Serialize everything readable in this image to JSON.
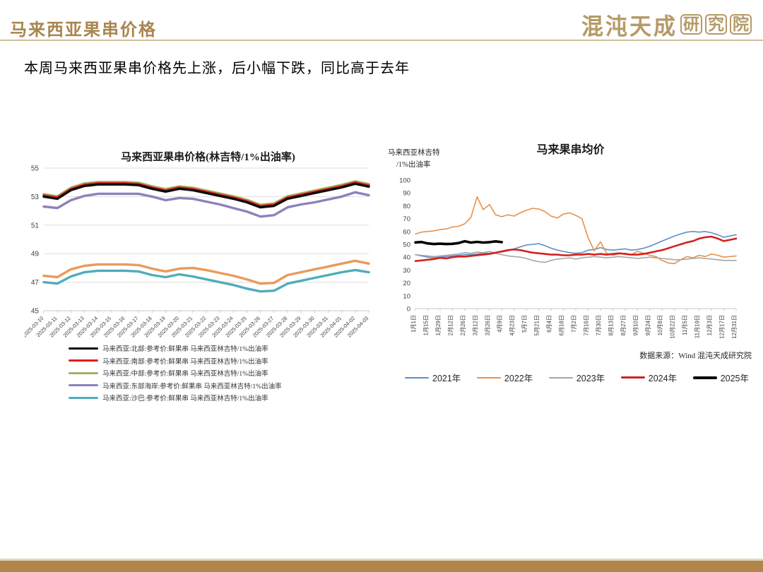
{
  "page": {
    "title": "马来西亚果串价格",
    "subtitle": "本周马来西亚果串价格先上涨，后小幅下跌，同比高于去年",
    "logo": {
      "text_main": "混沌天成",
      "boxed_chars": [
        "研",
        "究",
        "院"
      ]
    },
    "accent_color": "#a8854e",
    "footer_color": "#b2854c"
  },
  "chart_data": [
    {
      "id": "left",
      "type": "line",
      "title": "马来西亚果串价格(林吉特/1%出油率)",
      "ylim": [
        45,
        55
      ],
      "yticks": [
        55,
        53,
        51,
        49,
        47,
        45
      ],
      "grid": true,
      "legend_position": "bottom-left",
      "categories": [
        "2025-03-10",
        "2025-03-11",
        "2025-03-12",
        "2025-03-13",
        "2025-03-14",
        "2025-03-15",
        "2025-03-16",
        "2025-03-17",
        "2025-03-18",
        "2025-03-19",
        "2025-03-20",
        "2025-03-21",
        "2025-03-22",
        "2025-03-23",
        "2025-03-24",
        "2025-03-25",
        "2025-03-26",
        "2025-03-27",
        "2025-03-28",
        "2025-03-29",
        "2025-03-30",
        "2025-03-31",
        "2025-04-01",
        "2025-04-02",
        "2025-04-03"
      ],
      "draw_order": [
        2,
        1,
        0,
        3,
        5,
        4
      ],
      "series": [
        {
          "name": "马来西亚:北部:参考价:鲜果串 马来西亚林吉特/1%出油率",
          "color": "#0a0a0a",
          "width": 3.4,
          "values": [
            53.0,
            52.85,
            53.45,
            53.75,
            53.85,
            53.85,
            53.85,
            53.8,
            53.55,
            53.35,
            53.55,
            53.45,
            53.25,
            53.05,
            52.85,
            52.6,
            52.25,
            52.35,
            52.85,
            53.05,
            53.25,
            53.45,
            53.65,
            53.9,
            53.7
          ]
        },
        {
          "name": "马来西亚:南部:参考价:鲜果串 马来西亚林吉特/1%出油率",
          "color": "#e01e1e",
          "width": 3.4,
          "values": [
            53.08,
            52.93,
            53.53,
            53.83,
            53.93,
            53.93,
            53.93,
            53.88,
            53.63,
            53.43,
            53.63,
            53.53,
            53.33,
            53.13,
            52.93,
            52.68,
            52.33,
            52.43,
            52.93,
            53.13,
            53.33,
            53.53,
            53.73,
            53.98,
            53.78
          ]
        },
        {
          "name": "马来西亚:中部:参考价:鲜果串 马来西亚林吉特/1%出油率",
          "color": "#a3b164",
          "width": 3.4,
          "values": [
            53.17,
            53.02,
            53.62,
            53.92,
            54.02,
            54.02,
            54.02,
            53.97,
            53.72,
            53.52,
            53.72,
            53.62,
            53.42,
            53.22,
            53.02,
            52.77,
            52.42,
            52.52,
            53.02,
            53.22,
            53.42,
            53.62,
            53.82,
            54.07,
            53.87
          ]
        },
        {
          "name": "马来西亚:东部海岸:参考价:鲜果串 马来西亚林吉特/1%出油率",
          "color": "#9080bc",
          "width": 3.4,
          "values": [
            52.3,
            52.2,
            52.75,
            53.05,
            53.2,
            53.2,
            53.2,
            53.2,
            53.0,
            52.75,
            52.9,
            52.85,
            52.65,
            52.45,
            52.2,
            51.95,
            51.6,
            51.7,
            52.25,
            52.45,
            52.6,
            52.8,
            53.0,
            53.3,
            53.1
          ]
        },
        {
          "name": "马来西亚:沙巴:参考价:鲜果串 马来西亚林吉特/1%出油率",
          "color": "#4fadbb",
          "width": 3.4,
          "values": [
            47.0,
            46.9,
            47.4,
            47.7,
            47.8,
            47.8,
            47.8,
            47.75,
            47.5,
            47.35,
            47.55,
            47.4,
            47.2,
            47.0,
            46.8,
            46.55,
            46.35,
            46.4,
            46.9,
            47.1,
            47.3,
            47.5,
            47.7,
            47.85,
            47.7
          ]
        },
        {
          "name": "",
          "show_in_legend": false,
          "color": "#eb9a5a",
          "width": 3.4,
          "values": [
            47.45,
            47.35,
            47.9,
            48.15,
            48.25,
            48.25,
            48.25,
            48.2,
            47.95,
            47.75,
            47.95,
            48.0,
            47.85,
            47.65,
            47.45,
            47.2,
            46.9,
            46.95,
            47.5,
            47.7,
            47.9,
            48.1,
            48.3,
            48.5,
            48.3
          ]
        }
      ]
    },
    {
      "id": "right",
      "type": "line",
      "title": "马来果串均价",
      "ylabel_lines": [
        "马来西亚林吉特",
        "/1%出油率"
      ],
      "ylim": [
        0,
        100
      ],
      "yticks": [
        100,
        90,
        80,
        70,
        60,
        50,
        40,
        30,
        20,
        10,
        0
      ],
      "grid": false,
      "x_slots": 52,
      "x_tick_labels": [
        "1月1日",
        "1月15日",
        "1月29日",
        "2月12日",
        "2月26日",
        "3月12日",
        "3月26日",
        "4月9日",
        "4月23日",
        "5月7日",
        "5月21日",
        "6月4日",
        "6月18日",
        "7月2日",
        "7月16日",
        "7月30日",
        "8月13日",
        "8月27日",
        "9月10日",
        "9月24日",
        "10月8日",
        "10月22日",
        "11月5日",
        "11月19日",
        "12月3日",
        "12月17日",
        "12月31日"
      ],
      "source": "数据来源：Wind  混沌天成研究院",
      "legend_position": "bottom",
      "series": [
        {
          "name": "2021年",
          "color": "#5e8fc7",
          "width": 1.6,
          "values": [
            42,
            41,
            40,
            39.5,
            40,
            40.5,
            41,
            41.5,
            42,
            42,
            42.5,
            43,
            43,
            43.5,
            44,
            45,
            46.5,
            48,
            49.5,
            50,
            50.5,
            49,
            47,
            45.5,
            44.5,
            43.5,
            43,
            43.5,
            45.5,
            46,
            47.5,
            46,
            45.5,
            46,
            46.5,
            45.5,
            46,
            47,
            48.5,
            50.5,
            52.5,
            54.5,
            56.5,
            58,
            59.5,
            60,
            59.5,
            60,
            59,
            57.5,
            55.5,
            56.5,
            57.5
          ]
        },
        {
          "name": "2022年",
          "color": "#e89148",
          "width": 1.6,
          "values": [
            58,
            59.5,
            60,
            60.5,
            61.5,
            62,
            63.5,
            64,
            66,
            71,
            87,
            77,
            81,
            73,
            71.5,
            73,
            72,
            74.5,
            76.5,
            78,
            77.5,
            75.5,
            72,
            70.5,
            73.5,
            74.5,
            72.5,
            70,
            55,
            45,
            52,
            43,
            41.5,
            42.5,
            43,
            42,
            44.5,
            43,
            41.5,
            40.5,
            37.5,
            35.5,
            35,
            38,
            40.5,
            39.5,
            41.5,
            40.5,
            42.5,
            41.5,
            40,
            40.5,
            41
          ]
        },
        {
          "name": "2023年",
          "color": "#a6a6a6",
          "width": 1.6,
          "values": [
            42,
            41.5,
            41,
            40.5,
            41,
            41.5,
            42,
            42.5,
            43.5,
            43,
            44,
            43.5,
            44.5,
            43,
            42,
            41,
            40.5,
            40,
            39,
            37.5,
            36.5,
            36,
            37.5,
            38.5,
            39,
            39.5,
            38.5,
            39.5,
            40,
            40.5,
            40,
            39.5,
            40,
            40.5,
            40,
            39.5,
            39,
            39.5,
            40,
            39.5,
            39,
            38.5,
            38,
            38,
            38.5,
            39,
            39.5,
            39,
            38.5,
            38,
            37.5,
            37.5,
            37.5
          ]
        },
        {
          "name": "2024年",
          "color": "#d42221",
          "width": 2.6,
          "values": [
            37,
            37.5,
            38,
            38.5,
            39.5,
            39,
            40,
            40.5,
            40.5,
            41,
            41.5,
            42,
            42.5,
            43.5,
            44.5,
            45.5,
            46,
            45.5,
            44.5,
            43.5,
            43,
            42.5,
            42,
            42,
            41.5,
            41.5,
            42,
            42,
            42.5,
            42,
            42.5,
            42,
            42.5,
            43,
            42.5,
            42,
            42,
            42.5,
            43.5,
            44.5,
            45.5,
            47,
            48.5,
            50,
            51.5,
            52.5,
            54.5,
            55.5,
            56,
            54.5,
            52.5,
            53.5,
            54.5
          ]
        },
        {
          "name": "2025年",
          "color": "#000000",
          "width": 3.6,
          "values": [
            51.5,
            51.8,
            50.7,
            50.2,
            50.5,
            50.2,
            50.4,
            51.0,
            52.4,
            51.4,
            51.9,
            51.4,
            51.7,
            52.3,
            51.7
          ]
        }
      ]
    }
  ]
}
